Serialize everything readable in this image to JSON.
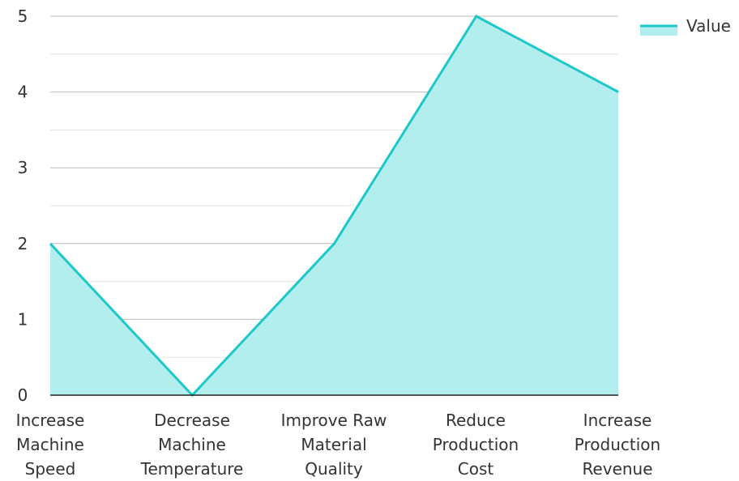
{
  "chart_data": {
    "type": "area",
    "categories": [
      [
        "Increase",
        "Machine",
        "Speed"
      ],
      [
        "Decrease",
        "Machine",
        "Temperature"
      ],
      [
        "Improve Raw",
        "Material",
        "Quality"
      ],
      [
        "Reduce",
        "Production",
        "Cost"
      ],
      [
        "Increase",
        "Production",
        "Revenue"
      ]
    ],
    "series": [
      {
        "name": "Value",
        "values": [
          2,
          0,
          2,
          5,
          4
        ]
      }
    ],
    "ylim": [
      0,
      5
    ],
    "yticks": [
      "0",
      "1",
      "2",
      "3",
      "4",
      "5"
    ],
    "grid": true,
    "legend": "top-right",
    "colors": {
      "line": "#1ec8c8",
      "fill": "#b2eeed",
      "grid_major": "#bdbdbd",
      "grid_minor": "#e3e3e3",
      "axis": "#222222"
    }
  }
}
